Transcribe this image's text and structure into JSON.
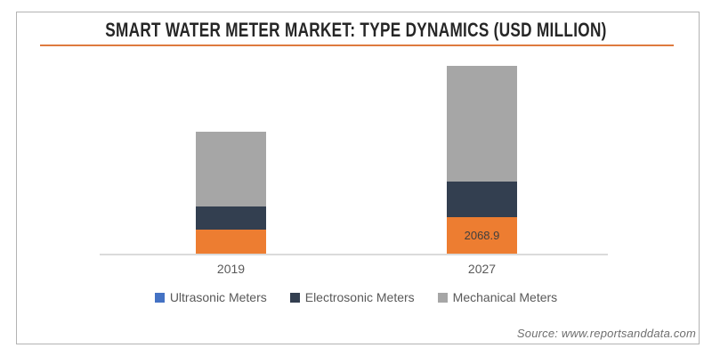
{
  "chart_data": {
    "type": "bar",
    "stacked": true,
    "title": "SMART WATER METER MARKET: TYPE DYNAMICS (USD MILLION)",
    "unit": "USD MILLION",
    "categories": [
      "2019",
      "2027"
    ],
    "series": [
      {
        "name": "Ultrasonic Meters",
        "legend_swatch_color": "#4472C4",
        "bar_color": "#ED7D31",
        "values": [
          1360,
          2068.9
        ],
        "data_labels": [
          "",
          "2068.9"
        ]
      },
      {
        "name": "Electrosonic Meters",
        "legend_swatch_color": "#333F50",
        "bar_color": "#333F50",
        "values": [
          1310,
          2020
        ],
        "data_labels": [
          "",
          ""
        ]
      },
      {
        "name": "Mechanical Meters",
        "legend_swatch_color": "#A6A6A6",
        "bar_color": "#A6A6A6",
        "values": [
          4240,
          6560
        ],
        "data_labels": [
          "",
          ""
        ]
      }
    ],
    "xlabel": "",
    "ylabel": "",
    "grid": false,
    "legend_position": "bottom",
    "axis_baseline_only": true
  },
  "footer": {
    "source": "Source: www.reportsanddata.com"
  },
  "colors": {
    "accent_rule": "#DE7A3E",
    "frame_border": "#B3B3B3",
    "axis_line": "#DBDBDB",
    "title_text": "#262626",
    "text_muted": "#595959",
    "data_label_text": "#3F3F3F",
    "source_text": "#6F6F6F"
  }
}
